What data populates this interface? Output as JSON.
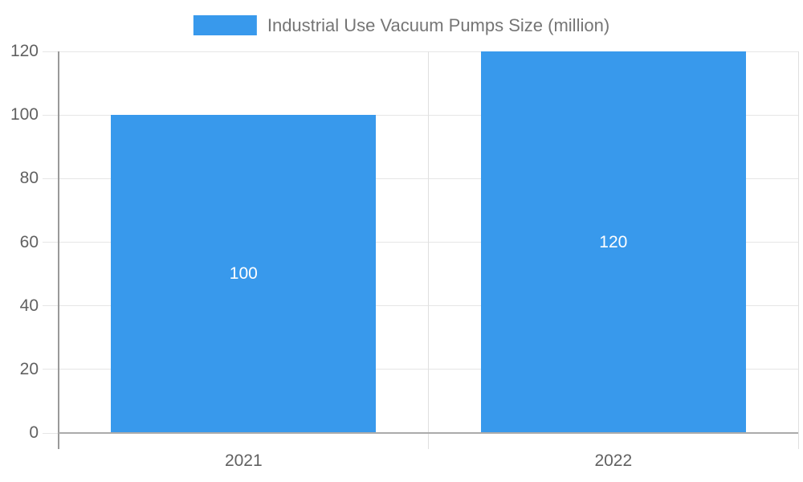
{
  "legend": {
    "label": "Industrial Use Vacuum Pumps Size (million)"
  },
  "colors": {
    "bar": "#3899ec",
    "grid": "#e6e6e6",
    "vgrid": "#e0e0e0",
    "y_axis": "#999999",
    "baseline": "#ababab",
    "tick_label": "#616161",
    "legend_text": "#757575",
    "bar_label": "#ffffff"
  },
  "chart_data": {
    "type": "bar",
    "categories": [
      "2021",
      "2022"
    ],
    "series": [
      {
        "name": "Industrial Use Vacuum Pumps Size (million)",
        "values": [
          100,
          120
        ]
      }
    ],
    "bar_value_labels": [
      "100",
      "120"
    ],
    "title": "",
    "xlabel": "",
    "ylabel": "",
    "ylim": [
      0,
      120
    ],
    "yticks": [
      0,
      20,
      40,
      60,
      80,
      100,
      120
    ],
    "grid": true,
    "legend_position": "top-center"
  }
}
